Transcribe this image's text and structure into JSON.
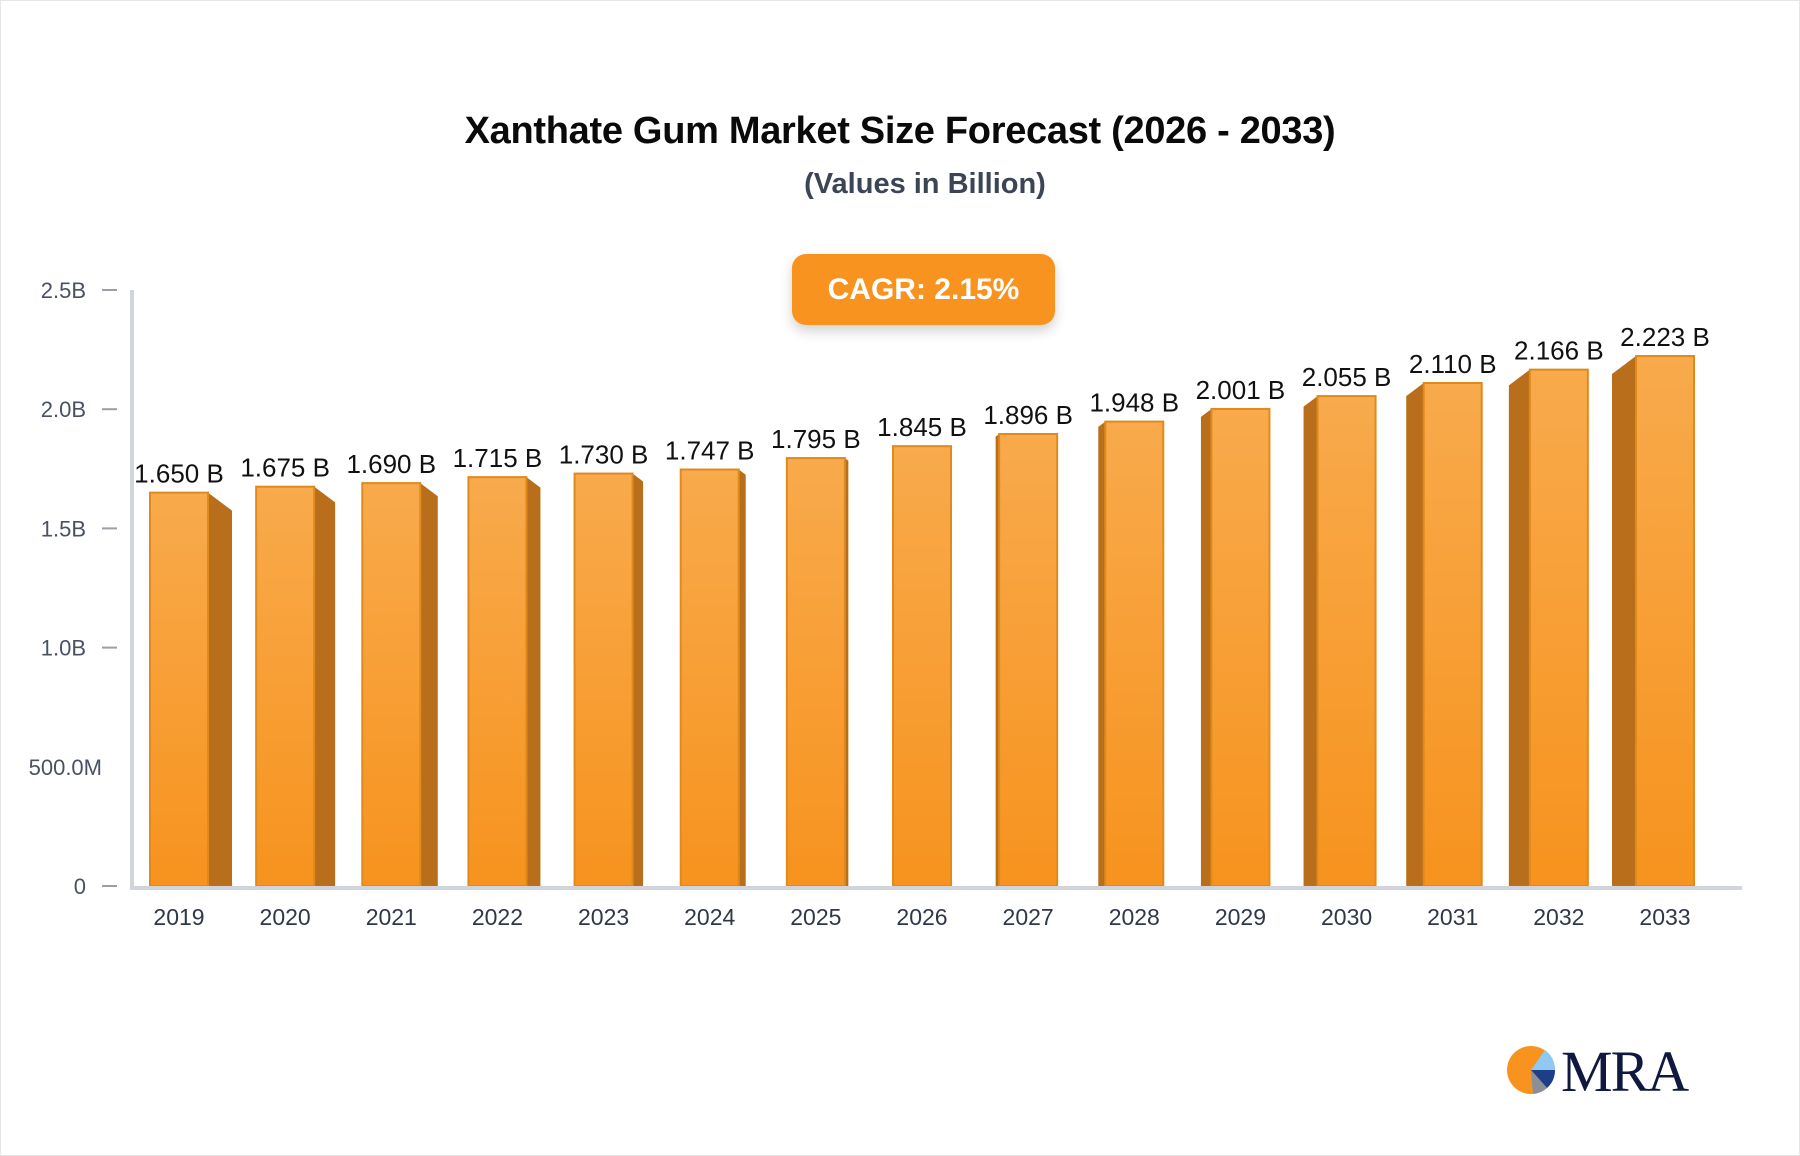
{
  "header": {
    "title": "Xanthate Gum Market Size Forecast (2026 - 2033)",
    "subtitle": "(Values in Billion)"
  },
  "badge": {
    "label": "CAGR: 2.15%"
  },
  "logo": {
    "text": "MRA"
  },
  "colors": {
    "bar_front_top": "#f8aa4c",
    "bar_front_bottom": "#f7931e",
    "bar_side": "#b86e1a",
    "bar_edge": "#e08a1e",
    "axis": "#d1d5db",
    "badge": "#f7931e"
  },
  "chart_data": {
    "type": "bar",
    "title": "Xanthate Gum Market Size Forecast (2026 - 2033)",
    "subtitle": "(Values in Billion)",
    "categories": [
      "2019",
      "2020",
      "2021",
      "2022",
      "2023",
      "2024",
      "2025",
      "2026",
      "2027",
      "2028",
      "2029",
      "2030",
      "2031",
      "2032",
      "2033"
    ],
    "values": [
      1.65,
      1.675,
      1.69,
      1.715,
      1.73,
      1.747,
      1.795,
      1.845,
      1.896,
      1.948,
      2.001,
      2.055,
      2.11,
      2.166,
      2.223
    ],
    "value_labels": [
      "1.650 B",
      "1.675 B",
      "1.690 B",
      "1.715 B",
      "1.730 B",
      "1.747 B",
      "1.795 B",
      "1.845 B",
      "1.896 B",
      "1.948 B",
      "2.001 B",
      "2.055 B",
      "2.110 B",
      "2.166 B",
      "2.223 B"
    ],
    "unit": "Billion",
    "xlabel": "",
    "ylabel": "",
    "ylim": [
      0,
      2.5
    ],
    "yticks": [
      0,
      0.5,
      1.0,
      1.5,
      2.0,
      2.5
    ],
    "ytick_labels": [
      "0",
      "500.0M",
      "1.0B",
      "1.5B",
      "2.0B",
      "2.5B"
    ],
    "grid": false,
    "legend": null,
    "annotation": "CAGR: 2.15%"
  }
}
